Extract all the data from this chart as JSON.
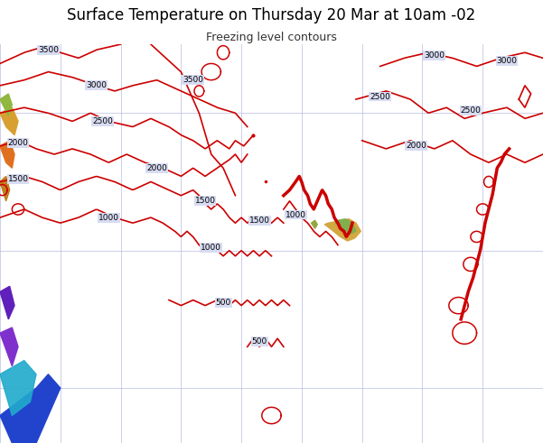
{
  "title": "Surface Temperature on Thursday 20 Mar at 10am -02",
  "subtitle": "Freezing level contours",
  "title_fontsize": 12,
  "subtitle_fontsize": 9,
  "fig_width": 6.01,
  "fig_height": 4.91,
  "dpi": 100,
  "map_bg": "#d8dcf2",
  "title_bg": "#ffffff",
  "grid_color": "#b8bce0",
  "contour_color": "#cc0000",
  "contour_lw": 1.2,
  "thick_lw": 2.5,
  "label_fontsize": 6.5,
  "lon_min": -65,
  "lon_max": -20,
  "lat_min": -62,
  "lat_max": -47.5
}
